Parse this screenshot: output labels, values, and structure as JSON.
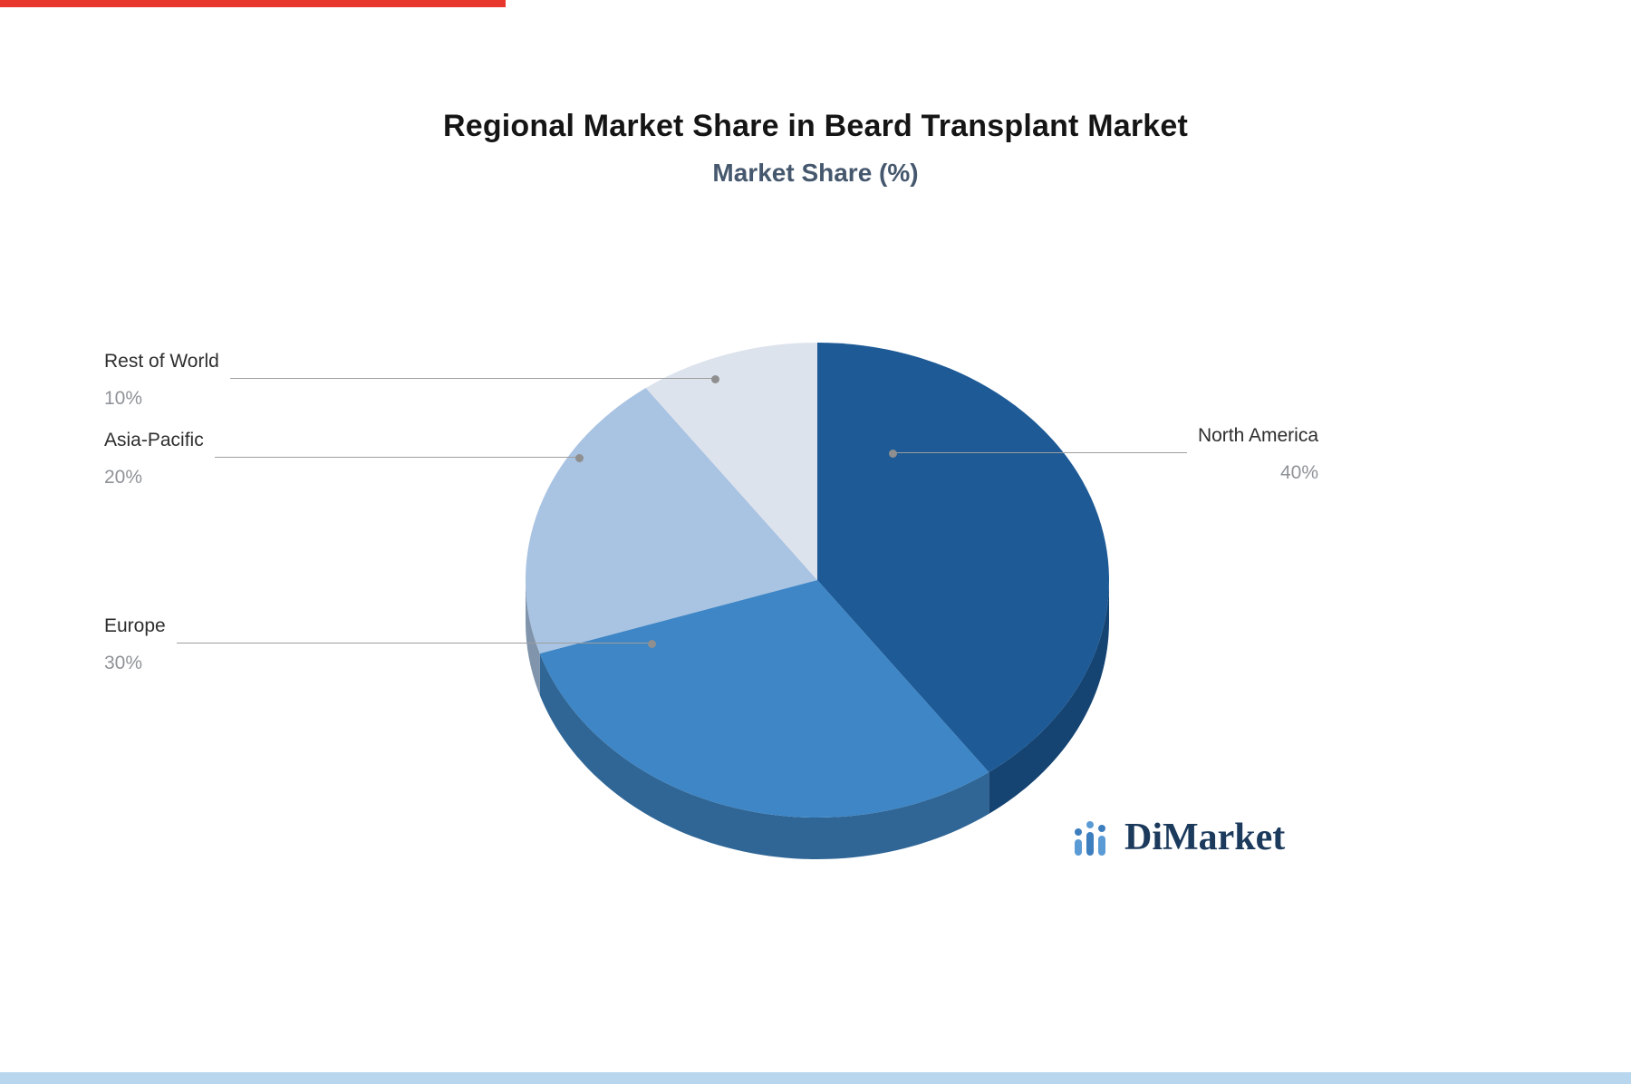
{
  "page": {
    "background": "#ffffff",
    "top_bar_color": "#e8382d",
    "bottom_bar_color": "#b8d7ee"
  },
  "chart_data": {
    "type": "pie",
    "style": "3d",
    "title": "Regional Market Share in Beard Transplant Market",
    "subtitle": "Market Share (%)",
    "legend": "none",
    "label_style": "leader-lines",
    "value_suffix": "%",
    "slices": [
      {
        "label": "North America",
        "value": 40,
        "display_value": "40%",
        "color": "#1d5a96"
      },
      {
        "label": "Europe",
        "value": 30,
        "display_value": "30%",
        "color": "#3e86c6"
      },
      {
        "label": "Asia-Pacific",
        "value": 20,
        "display_value": "20%",
        "color": "#a9c3e2"
      },
      {
        "label": "Rest of World",
        "value": 10,
        "display_value": "10%",
        "color": "#dde3ed"
      }
    ]
  },
  "branding": {
    "logo_text": "DiMarket",
    "logo_icon": "bar-chart-icon"
  }
}
